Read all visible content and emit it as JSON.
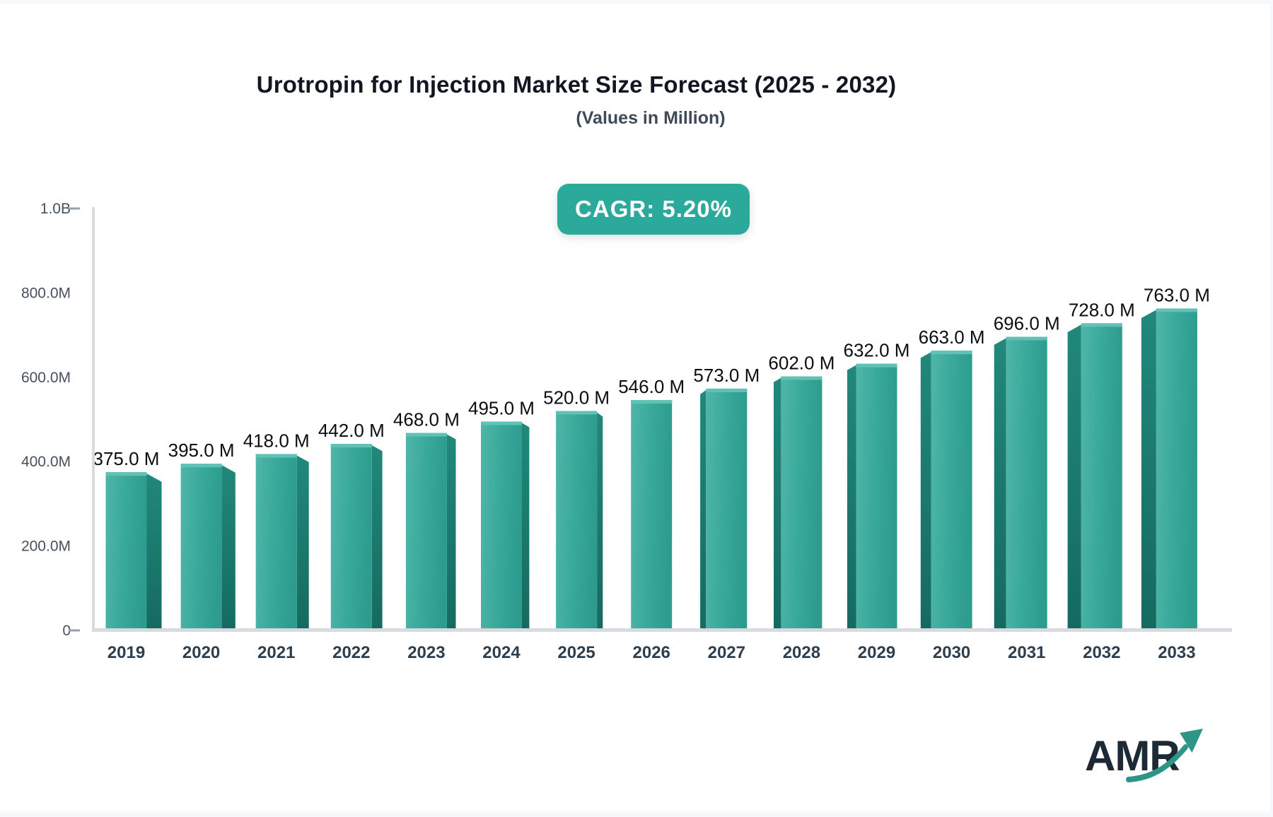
{
  "header": {
    "title": "Urotropin for Injection Market Size Forecast (2025 - 2032)",
    "subtitle": "(Values in Million)",
    "cagr_label": "CAGR: 5.20%",
    "badge_color": "#2ba99b"
  },
  "logo": {
    "text": "AMR",
    "text_color": "#1d2a36",
    "arrow_color": "#2f9488"
  },
  "chart_data": {
    "type": "bar",
    "title": "Urotropin for Injection Market Size Forecast (2025 - 2032)",
    "subtitle": "(Values in Million)",
    "xlabel": "",
    "ylabel": "",
    "categories": [
      "2019",
      "2020",
      "2021",
      "2022",
      "2023",
      "2024",
      "2025",
      "2026",
      "2027",
      "2028",
      "2029",
      "2030",
      "2031",
      "2032",
      "2033"
    ],
    "values": [
      375.0,
      395.0,
      418.0,
      442.0,
      468.0,
      495.0,
      520.0,
      546.0,
      573.0,
      602.0,
      632.0,
      663.0,
      696.0,
      728.0,
      763.0
    ],
    "value_labels": [
      "375.0 M",
      "395.0 M",
      "418.0 M",
      "442.0 M",
      "468.0 M",
      "495.0 M",
      "520.0 M",
      "546.0 M",
      "573.0 M",
      "602.0 M",
      "632.0 M",
      "663.0 M",
      "696.0 M",
      "728.0 M",
      "763.0 M"
    ],
    "ylim": [
      0,
      1000
    ],
    "y_ticks": [
      {
        "label": "1.0B",
        "value": 1000,
        "dash": true
      },
      {
        "label": "800.0M",
        "value": 800,
        "dash": false
      },
      {
        "label": "600.0M",
        "value": 600,
        "dash": false
      },
      {
        "label": "400.0M",
        "value": 400,
        "dash": false
      },
      {
        "label": "200.0M",
        "value": 200,
        "dash": false
      },
      {
        "label": "0",
        "value": 0,
        "dash": true
      }
    ],
    "grid": false,
    "legend": false,
    "bar_style_3d": true,
    "colors": {
      "bar_front_light": "#4fb6a8",
      "bar_front_mid": "#39a99b",
      "bar_front_dark": "#2d9c8e",
      "bar_top_strip": "#60c2b4",
      "bar_side_top": "#21887b",
      "bar_side_bottom": "#156a60",
      "axis_line": "#d7dade",
      "tick_dash": "#97a1ac",
      "value_label": "#0b0e11",
      "year_label": "#2f3e4d",
      "y_tick_label": "#46515e"
    }
  }
}
